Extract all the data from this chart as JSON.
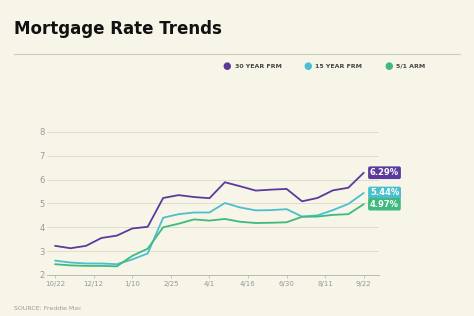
{
  "title": "Mortgage Rate Trends",
  "source": "SOURCE: Freddie Mac",
  "background_color": "#f7f4e8",
  "x_labels": [
    "10/22",
    "12/12",
    "1/10",
    "2/25",
    "4/1",
    "4/16",
    "6/30",
    "8/11",
    "9/22"
  ],
  "ylim": [
    2,
    8.5
  ],
  "yticks": [
    2,
    3,
    4,
    5,
    6,
    7,
    8
  ],
  "series": {
    "30 YEAR FRM": {
      "color": "#5b3a9e",
      "end_value": "6.29%",
      "label_bg": "#5b3a9e",
      "data": [
        3.22,
        3.12,
        3.22,
        3.55,
        3.65,
        3.95,
        4.02,
        5.23,
        5.35,
        5.27,
        5.22,
        5.89,
        5.72,
        5.54,
        5.58,
        5.61,
        5.09,
        5.23,
        5.55,
        5.66,
        6.29
      ]
    },
    "15 YEAR FRM": {
      "color": "#4bbfcf",
      "end_value": "5.44%",
      "label_bg": "#4bbfcf",
      "data": [
        2.6,
        2.52,
        2.48,
        2.48,
        2.45,
        2.65,
        2.9,
        4.4,
        4.55,
        4.62,
        4.62,
        5.02,
        4.83,
        4.71,
        4.72,
        4.76,
        4.45,
        4.5,
        4.72,
        4.98,
        5.44
      ]
    },
    "5/1 ARM": {
      "color": "#3dba7e",
      "end_value": "4.97%",
      "label_bg": "#3dba7e",
      "data": [
        2.45,
        2.4,
        2.38,
        2.38,
        2.36,
        2.8,
        3.1,
        4.0,
        4.15,
        4.33,
        4.28,
        4.35,
        4.23,
        4.18,
        4.19,
        4.21,
        4.44,
        4.45,
        4.52,
        4.55,
        4.97
      ]
    }
  },
  "legend_items": [
    {
      "label": "30 YEAR FRM",
      "color": "#5b3a9e"
    },
    {
      "label": "15 YEAR FRM",
      "color": "#4bbfcf"
    },
    {
      "label": "5/1 ARM",
      "color": "#3dba7e"
    }
  ],
  "series_order": [
    "30 YEAR FRM",
    "15 YEAR FRM",
    "5/1 ARM"
  ],
  "label_texts": [
    "6.29%",
    "5.44%",
    "4.97%"
  ],
  "label_colors": [
    "#5b3a9e",
    "#4bbfcf",
    "#3dba7e"
  ]
}
